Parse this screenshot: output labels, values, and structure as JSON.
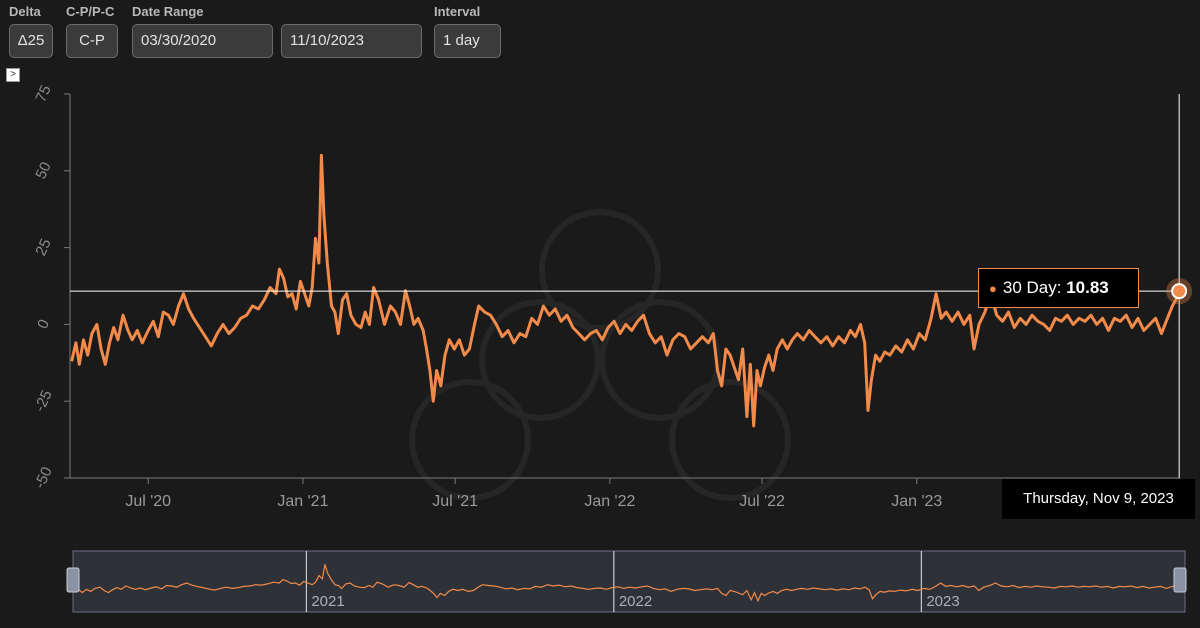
{
  "controls": {
    "delta": {
      "label": "Delta",
      "value": "Δ25"
    },
    "cp": {
      "label": "C-P/P-C",
      "value": "C-P"
    },
    "date_range": {
      "label": "Date Range",
      "start": "03/30/2020",
      "end": "11/10/2023"
    },
    "interval": {
      "label": "Interval",
      "value": "1 day"
    }
  },
  "expand_glyph": ">",
  "colors": {
    "series": "#f28a4a",
    "background": "#1a1a1a",
    "crosshair": "#ffffff"
  },
  "tooltip": {
    "series_label": "30 Day:",
    "value": "10.83",
    "date": "Thursday, Nov 9, 2023"
  },
  "navigator": {
    "year_labels": [
      "2021",
      "2022",
      "2023"
    ]
  },
  "chart_data": {
    "type": "line",
    "title": "",
    "xlabel": "",
    "ylabel": "",
    "ylim": [
      -50,
      75
    ],
    "y_ticks": [
      "75",
      "50",
      "25",
      "0",
      "-25",
      "-50"
    ],
    "x_range": [
      "2020-03-30",
      "2023-11-10"
    ],
    "x_ticks": [
      {
        "date": "2020-07-01",
        "label": "Jul '20"
      },
      {
        "date": "2021-01-01",
        "label": "Jan '21"
      },
      {
        "date": "2021-07-01",
        "label": "Jul '21"
      },
      {
        "date": "2022-01-01",
        "label": "Jan '22"
      },
      {
        "date": "2022-07-01",
        "label": "Jul '22"
      },
      {
        "date": "2023-01-01",
        "label": "Jan '23"
      }
    ],
    "grid": false,
    "series": [
      {
        "name": "30 Day",
        "points": [
          [
            "2020-04-01",
            -12
          ],
          [
            "2020-04-06",
            -6
          ],
          [
            "2020-04-10",
            -13
          ],
          [
            "2020-04-15",
            -5
          ],
          [
            "2020-04-20",
            -10
          ],
          [
            "2020-04-25",
            -3
          ],
          [
            "2020-05-01",
            0
          ],
          [
            "2020-05-06",
            -8
          ],
          [
            "2020-05-11",
            -13
          ],
          [
            "2020-05-16",
            -6
          ],
          [
            "2020-05-21",
            -1
          ],
          [
            "2020-05-26",
            -5
          ],
          [
            "2020-06-01",
            3
          ],
          [
            "2020-06-07",
            -2
          ],
          [
            "2020-06-12",
            -5
          ],
          [
            "2020-06-18",
            -2
          ],
          [
            "2020-06-24",
            -6
          ],
          [
            "2020-07-01",
            -2
          ],
          [
            "2020-07-07",
            1
          ],
          [
            "2020-07-13",
            -4
          ],
          [
            "2020-07-19",
            4
          ],
          [
            "2020-07-25",
            3
          ],
          [
            "2020-07-31",
            0
          ],
          [
            "2020-08-06",
            6
          ],
          [
            "2020-08-12",
            10
          ],
          [
            "2020-08-18",
            5
          ],
          [
            "2020-08-24",
            2
          ],
          [
            "2020-08-31",
            -1
          ],
          [
            "2020-09-07",
            -4
          ],
          [
            "2020-09-14",
            -7
          ],
          [
            "2020-09-21",
            -3
          ],
          [
            "2020-09-28",
            0
          ],
          [
            "2020-10-05",
            -3
          ],
          [
            "2020-10-12",
            -1
          ],
          [
            "2020-10-19",
            2
          ],
          [
            "2020-10-26",
            3
          ],
          [
            "2020-11-02",
            6
          ],
          [
            "2020-11-09",
            5
          ],
          [
            "2020-11-16",
            8
          ],
          [
            "2020-11-23",
            12
          ],
          [
            "2020-11-30",
            10
          ],
          [
            "2020-12-04",
            18
          ],
          [
            "2020-12-09",
            15
          ],
          [
            "2020-12-14",
            9
          ],
          [
            "2020-12-19",
            10
          ],
          [
            "2020-12-24",
            5
          ],
          [
            "2020-12-29",
            14
          ],
          [
            "2021-01-03",
            10
          ],
          [
            "2021-01-08",
            6
          ],
          [
            "2021-01-12",
            12
          ],
          [
            "2021-01-16",
            28
          ],
          [
            "2021-01-20",
            20
          ],
          [
            "2021-01-23",
            55
          ],
          [
            "2021-01-26",
            35
          ],
          [
            "2021-01-30",
            20
          ],
          [
            "2021-02-04",
            6
          ],
          [
            "2021-02-08",
            4
          ],
          [
            "2021-02-12",
            -3
          ],
          [
            "2021-02-17",
            8
          ],
          [
            "2021-02-22",
            10
          ],
          [
            "2021-02-27",
            3
          ],
          [
            "2021-03-05",
            0
          ],
          [
            "2021-03-11",
            -1
          ],
          [
            "2021-03-16",
            4
          ],
          [
            "2021-03-21",
            0
          ],
          [
            "2021-03-26",
            12
          ],
          [
            "2021-04-01",
            8
          ],
          [
            "2021-04-08",
            0
          ],
          [
            "2021-04-15",
            6
          ],
          [
            "2021-04-21",
            4
          ],
          [
            "2021-04-27",
            0
          ],
          [
            "2021-05-03",
            11
          ],
          [
            "2021-05-08",
            6
          ],
          [
            "2021-05-13",
            0
          ],
          [
            "2021-05-18",
            2
          ],
          [
            "2021-05-24",
            -2
          ],
          [
            "2021-05-28",
            -8
          ],
          [
            "2021-06-01",
            -15
          ],
          [
            "2021-06-05",
            -25
          ],
          [
            "2021-06-09",
            -15
          ],
          [
            "2021-06-14",
            -20
          ],
          [
            "2021-06-19",
            -10
          ],
          [
            "2021-06-24",
            -5
          ],
          [
            "2021-06-30",
            -8
          ],
          [
            "2021-07-06",
            -5
          ],
          [
            "2021-07-12",
            -10
          ],
          [
            "2021-07-18",
            -8
          ],
          [
            "2021-07-24",
            0
          ],
          [
            "2021-07-29",
            6
          ],
          [
            "2021-08-05",
            4
          ],
          [
            "2021-08-12",
            3
          ],
          [
            "2021-08-19",
            0
          ],
          [
            "2021-08-26",
            -4
          ],
          [
            "2021-09-02",
            -2
          ],
          [
            "2021-09-09",
            -6
          ],
          [
            "2021-09-16",
            -3
          ],
          [
            "2021-09-23",
            -4
          ],
          [
            "2021-09-30",
            2
          ],
          [
            "2021-10-07",
            0
          ],
          [
            "2021-10-14",
            6
          ],
          [
            "2021-10-21",
            3
          ],
          [
            "2021-10-28",
            5
          ],
          [
            "2021-11-04",
            1
          ],
          [
            "2021-11-11",
            3
          ],
          [
            "2021-11-18",
            -1
          ],
          [
            "2021-11-25",
            -3
          ],
          [
            "2021-12-02",
            -5
          ],
          [
            "2021-12-09",
            -3
          ],
          [
            "2021-12-16",
            -2
          ],
          [
            "2021-12-23",
            -5
          ],
          [
            "2021-12-30",
            -1
          ],
          [
            "2022-01-06",
            1
          ],
          [
            "2022-01-13",
            -3
          ],
          [
            "2022-01-20",
            0
          ],
          [
            "2022-01-27",
            -2
          ],
          [
            "2022-02-03",
            1
          ],
          [
            "2022-02-10",
            3
          ],
          [
            "2022-02-17",
            -3
          ],
          [
            "2022-02-24",
            -6
          ],
          [
            "2022-03-03",
            -4
          ],
          [
            "2022-03-10",
            -10
          ],
          [
            "2022-03-17",
            -5
          ],
          [
            "2022-03-24",
            -3
          ],
          [
            "2022-03-31",
            -4
          ],
          [
            "2022-04-07",
            -8
          ],
          [
            "2022-04-14",
            -6
          ],
          [
            "2022-04-21",
            -4
          ],
          [
            "2022-04-28",
            -6
          ],
          [
            "2022-05-04",
            -3
          ],
          [
            "2022-05-09",
            -15
          ],
          [
            "2022-05-14",
            -20
          ],
          [
            "2022-05-19",
            -8
          ],
          [
            "2022-05-24",
            -10
          ],
          [
            "2022-05-29",
            -14
          ],
          [
            "2022-06-03",
            -18
          ],
          [
            "2022-06-08",
            -8
          ],
          [
            "2022-06-13",
            -30
          ],
          [
            "2022-06-17",
            -13
          ],
          [
            "2022-06-21",
            -33
          ],
          [
            "2022-06-25",
            -15
          ],
          [
            "2022-06-29",
            -20
          ],
          [
            "2022-07-04",
            -14
          ],
          [
            "2022-07-09",
            -10
          ],
          [
            "2022-07-14",
            -15
          ],
          [
            "2022-07-19",
            -8
          ],
          [
            "2022-07-25",
            -5
          ],
          [
            "2022-07-31",
            -8
          ],
          [
            "2022-08-06",
            -5
          ],
          [
            "2022-08-12",
            -3
          ],
          [
            "2022-08-19",
            -5
          ],
          [
            "2022-08-26",
            -2
          ],
          [
            "2022-09-02",
            -4
          ],
          [
            "2022-09-09",
            -6
          ],
          [
            "2022-09-16",
            -4
          ],
          [
            "2022-09-23",
            -7
          ],
          [
            "2022-09-30",
            -4
          ],
          [
            "2022-10-07",
            -6
          ],
          [
            "2022-10-14",
            -2
          ],
          [
            "2022-10-20",
            -4
          ],
          [
            "2022-10-26",
            0
          ],
          [
            "2022-10-31",
            -6
          ],
          [
            "2022-11-04",
            -28
          ],
          [
            "2022-11-08",
            -18
          ],
          [
            "2022-11-13",
            -10
          ],
          [
            "2022-11-18",
            -12
          ],
          [
            "2022-11-24",
            -9
          ],
          [
            "2022-11-30",
            -10
          ],
          [
            "2022-12-07",
            -7
          ],
          [
            "2022-12-14",
            -9
          ],
          [
            "2022-12-21",
            -5
          ],
          [
            "2022-12-28",
            -8
          ],
          [
            "2023-01-04",
            -3
          ],
          [
            "2023-01-11",
            -5
          ],
          [
            "2023-01-18",
            2
          ],
          [
            "2023-01-24",
            10
          ],
          [
            "2023-01-30",
            2
          ],
          [
            "2023-02-05",
            4
          ],
          [
            "2023-02-12",
            1
          ],
          [
            "2023-02-19",
            4
          ],
          [
            "2023-02-26",
            0
          ],
          [
            "2023-03-05",
            3
          ],
          [
            "2023-03-10",
            -8
          ],
          [
            "2023-03-16",
            0
          ],
          [
            "2023-03-23",
            4
          ],
          [
            "2023-03-30",
            10
          ],
          [
            "2023-04-06",
            3
          ],
          [
            "2023-04-13",
            1
          ],
          [
            "2023-04-20",
            4
          ],
          [
            "2023-04-27",
            -1
          ],
          [
            "2023-05-04",
            2
          ],
          [
            "2023-05-11",
            0
          ],
          [
            "2023-05-18",
            3
          ],
          [
            "2023-05-25",
            1
          ],
          [
            "2023-06-01",
            0
          ],
          [
            "2023-06-08",
            -2
          ],
          [
            "2023-06-15",
            2
          ],
          [
            "2023-06-22",
            1
          ],
          [
            "2023-06-29",
            3
          ],
          [
            "2023-07-06",
            0
          ],
          [
            "2023-07-13",
            2
          ],
          [
            "2023-07-20",
            1
          ],
          [
            "2023-07-27",
            3
          ],
          [
            "2023-08-03",
            0
          ],
          [
            "2023-08-10",
            2
          ],
          [
            "2023-08-17",
            -2
          ],
          [
            "2023-08-24",
            2
          ],
          [
            "2023-08-31",
            1
          ],
          [
            "2023-09-07",
            3
          ],
          [
            "2023-09-14",
            -1
          ],
          [
            "2023-09-21",
            2
          ],
          [
            "2023-09-28",
            -2
          ],
          [
            "2023-10-05",
            0
          ],
          [
            "2023-10-12",
            2
          ],
          [
            "2023-10-19",
            -3
          ],
          [
            "2023-10-26",
            2
          ],
          [
            "2023-11-01",
            6
          ],
          [
            "2023-11-05",
            8
          ],
          [
            "2023-11-09",
            10.83
          ]
        ]
      }
    ]
  }
}
